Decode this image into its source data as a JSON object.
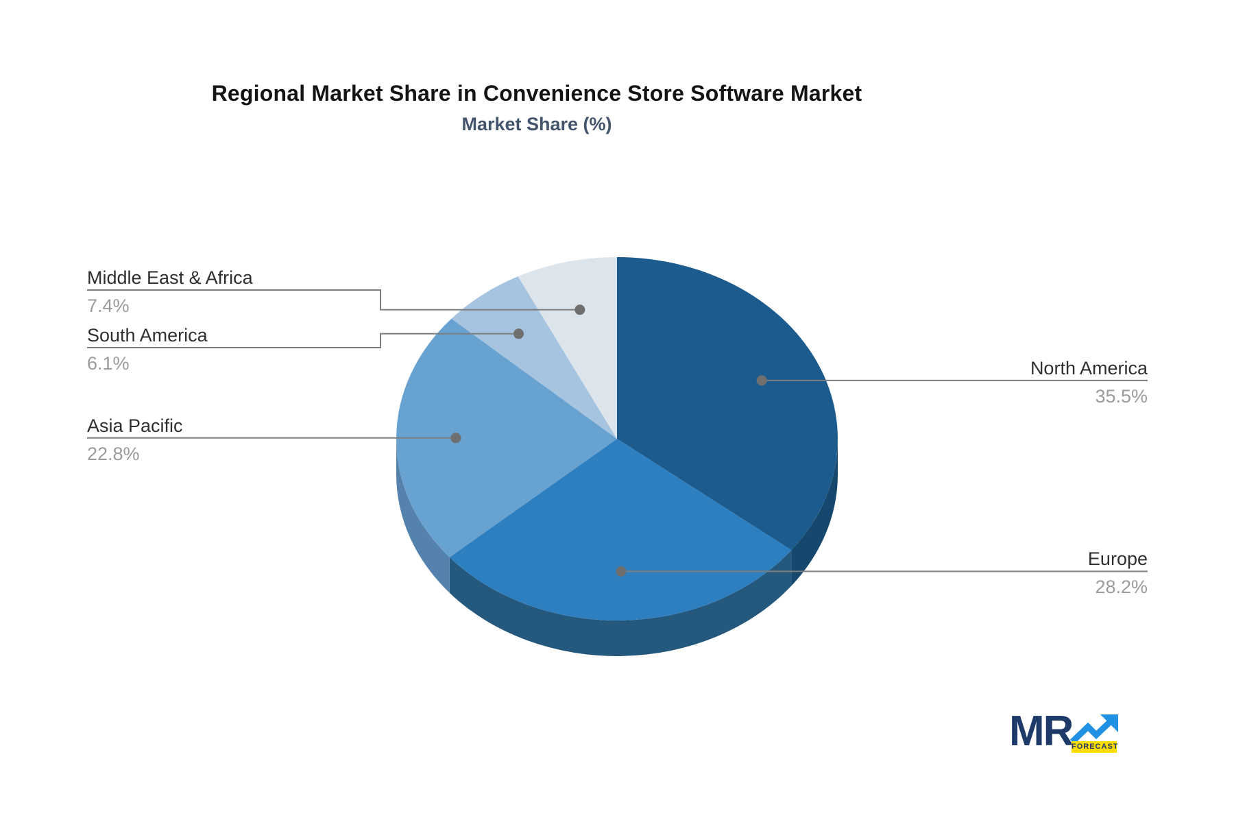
{
  "chart_data": {
    "type": "pie",
    "style": "pie-3d",
    "title": "Regional Market Share in Convenience Store Software Market",
    "subtitle": "Market Share (%)",
    "unit": "%",
    "direction": "clockwise",
    "start_angle_deg": 0,
    "legend_position": "callout-labels",
    "slices": [
      {
        "name": "North America",
        "value": 35.5,
        "display": "35.5%",
        "color": "#1c5b8d",
        "side_color": "#16486e"
      },
      {
        "name": "Europe",
        "value": 28.2,
        "display": "28.2%",
        "color": "#2e7fc0",
        "side_color": "#24587c"
      },
      {
        "name": "Asia Pacific",
        "value": 22.8,
        "display": "22.8%",
        "color": "#67a2d1",
        "side_color": "#5581ad"
      },
      {
        "name": "South America",
        "value": 6.1,
        "display": "6.1%",
        "color": "#a6c4df"
      },
      {
        "name": "Middle East & Africa",
        "value": 7.4,
        "display": "7.4%",
        "color": "#dde5ec"
      }
    ],
    "label_style": {
      "name_color": "#2f2f2f",
      "value_color": "#9b9b9b",
      "leader_line_color": "#7e7e7e",
      "leader_dot_color": "#6f6f6f"
    }
  },
  "logo": {
    "text": "MR",
    "badge": "FORECAST",
    "text_color": "#1d3a68",
    "arrow_color": "#2191e3",
    "badge_bg": "#ffdd00"
  }
}
